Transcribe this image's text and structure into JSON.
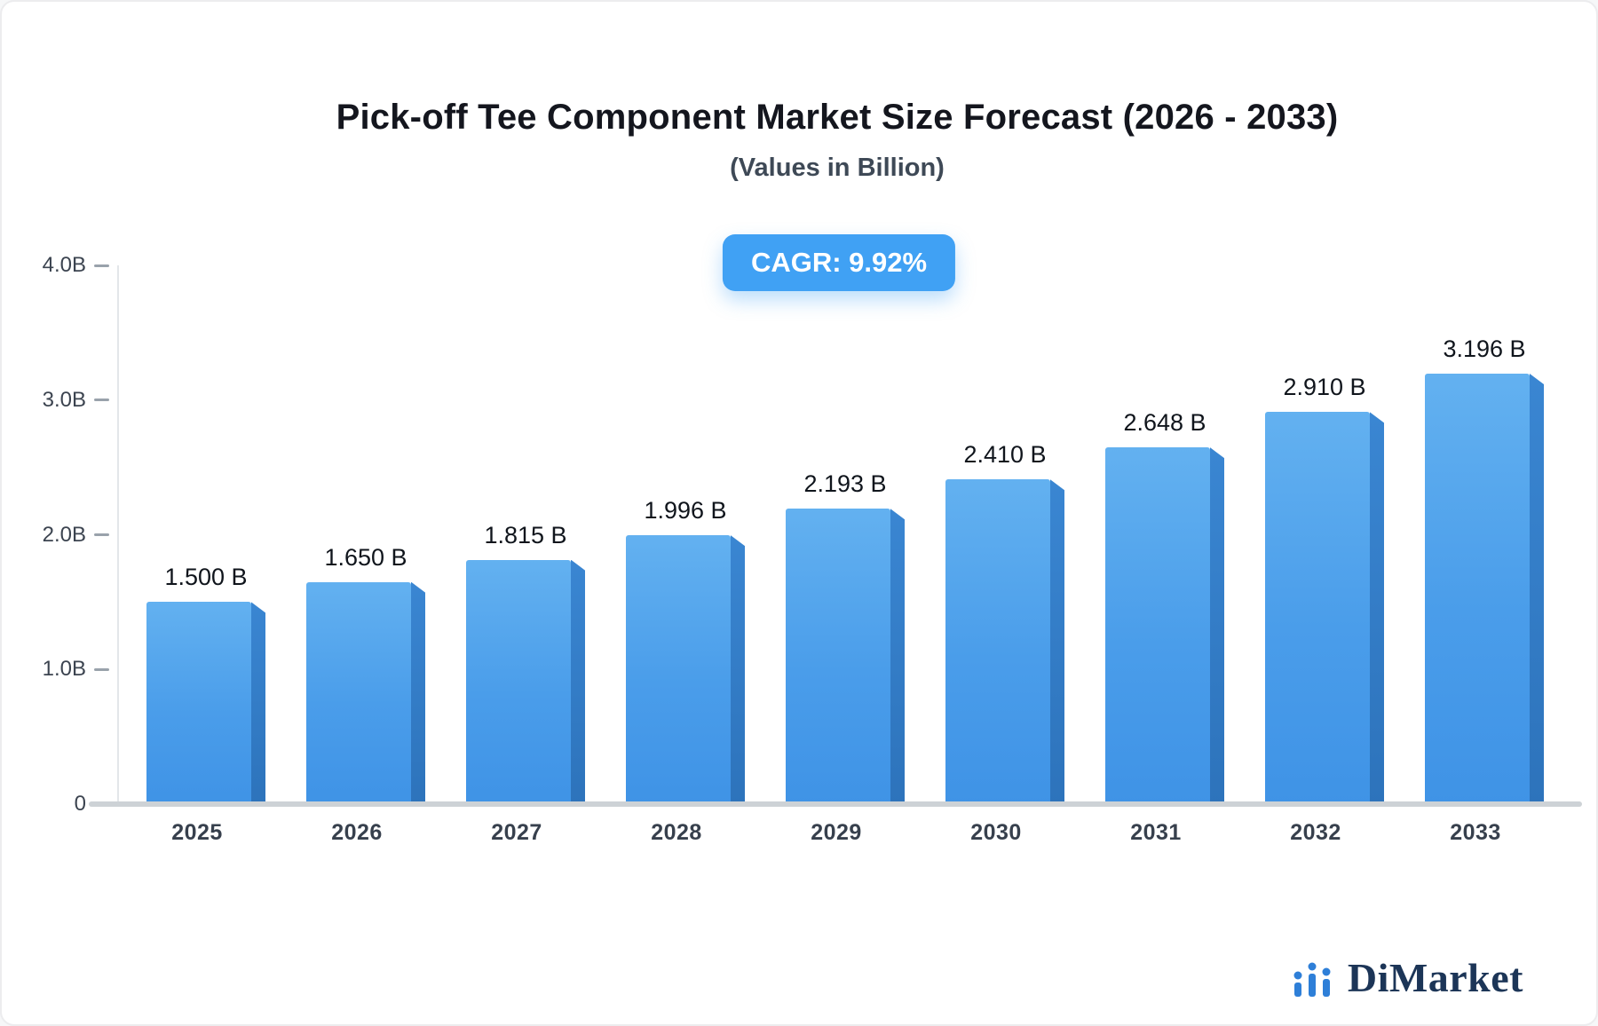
{
  "header": {
    "title": "Pick-off Tee Component Market Size Forecast (2026 - 2033)",
    "subtitle": "(Values in Billion)"
  },
  "badge": {
    "label": "CAGR: 9.92%"
  },
  "chart_data": {
    "type": "bar",
    "title": "Pick-off Tee Component Market Size Forecast (2026 - 2033)",
    "subtitle": "(Values in Billion)",
    "categories": [
      "2025",
      "2026",
      "2027",
      "2028",
      "2029",
      "2030",
      "2031",
      "2032",
      "2033"
    ],
    "values": [
      1.5,
      1.65,
      1.815,
      1.996,
      2.193,
      2.41,
      2.648,
      2.91,
      3.196
    ],
    "value_labels": [
      "1.500 B",
      "1.650 B",
      "1.815 B",
      "1.996 B",
      "2.193 B",
      "2.410 B",
      "2.648 B",
      "2.910 B",
      "3.196 B"
    ],
    "xlabel": "",
    "ylabel": "",
    "ylim": [
      0,
      4
    ],
    "yticks": [
      {
        "value": 0,
        "label": "0"
      },
      {
        "value": 1,
        "label": "1.0B"
      },
      {
        "value": 2,
        "label": "2.0B"
      },
      {
        "value": 3,
        "label": "3.0B"
      },
      {
        "value": 4,
        "label": "4.0B"
      }
    ],
    "grid": false,
    "legend": false,
    "annotation": "CAGR: 9.92%"
  },
  "colors": {
    "bar_face_top": "#63b1f0",
    "bar_face_mid": "#4a9dea",
    "bar_face_bottom": "#3f93e6",
    "bar_side_top": "#3a86d2",
    "bar_side_bottom": "#2d73bb",
    "badge_bg": "#40a1f4",
    "logo_text": "#1c3557",
    "logo_icon": "#2e7fd8"
  },
  "branding": {
    "name": "DiMarket"
  }
}
